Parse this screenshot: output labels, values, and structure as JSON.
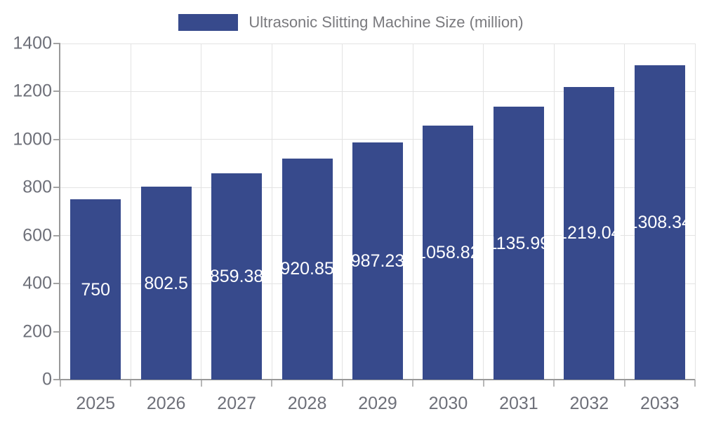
{
  "legend": {
    "label": "Ultrasonic Slitting Machine Size (million)"
  },
  "chart_data": {
    "type": "bar",
    "title": "Ultrasonic Slitting Machine Size (million)",
    "categories": [
      "2025",
      "2026",
      "2027",
      "2028",
      "2029",
      "2030",
      "2031",
      "2032",
      "2033"
    ],
    "values": [
      750,
      802.5,
      859.38,
      920.85,
      987.23,
      1058.82,
      1135.99,
      1219.04,
      1308.34
    ],
    "value_labels": [
      "750",
      "802.5",
      "859.38",
      "920.85",
      "987.23",
      "1058.82",
      "1135.99",
      "1219.04",
      "1308.34"
    ],
    "series_name": "Ultrasonic Slitting Machine Size (million)",
    "xlabel": "",
    "ylabel": "",
    "ylim": [
      0,
      1400
    ],
    "yticks": [
      0,
      200,
      400,
      600,
      800,
      1000,
      1200,
      1400
    ],
    "grid": true,
    "legend_position": "top",
    "colors": {
      "bar": "#374A8C",
      "bar_label": "#FFFFFF",
      "axis_text": "#6E7079",
      "legend_text": "#7A7A7E",
      "grid_line": "#E3E3E3",
      "axis_line": "#999999"
    }
  }
}
